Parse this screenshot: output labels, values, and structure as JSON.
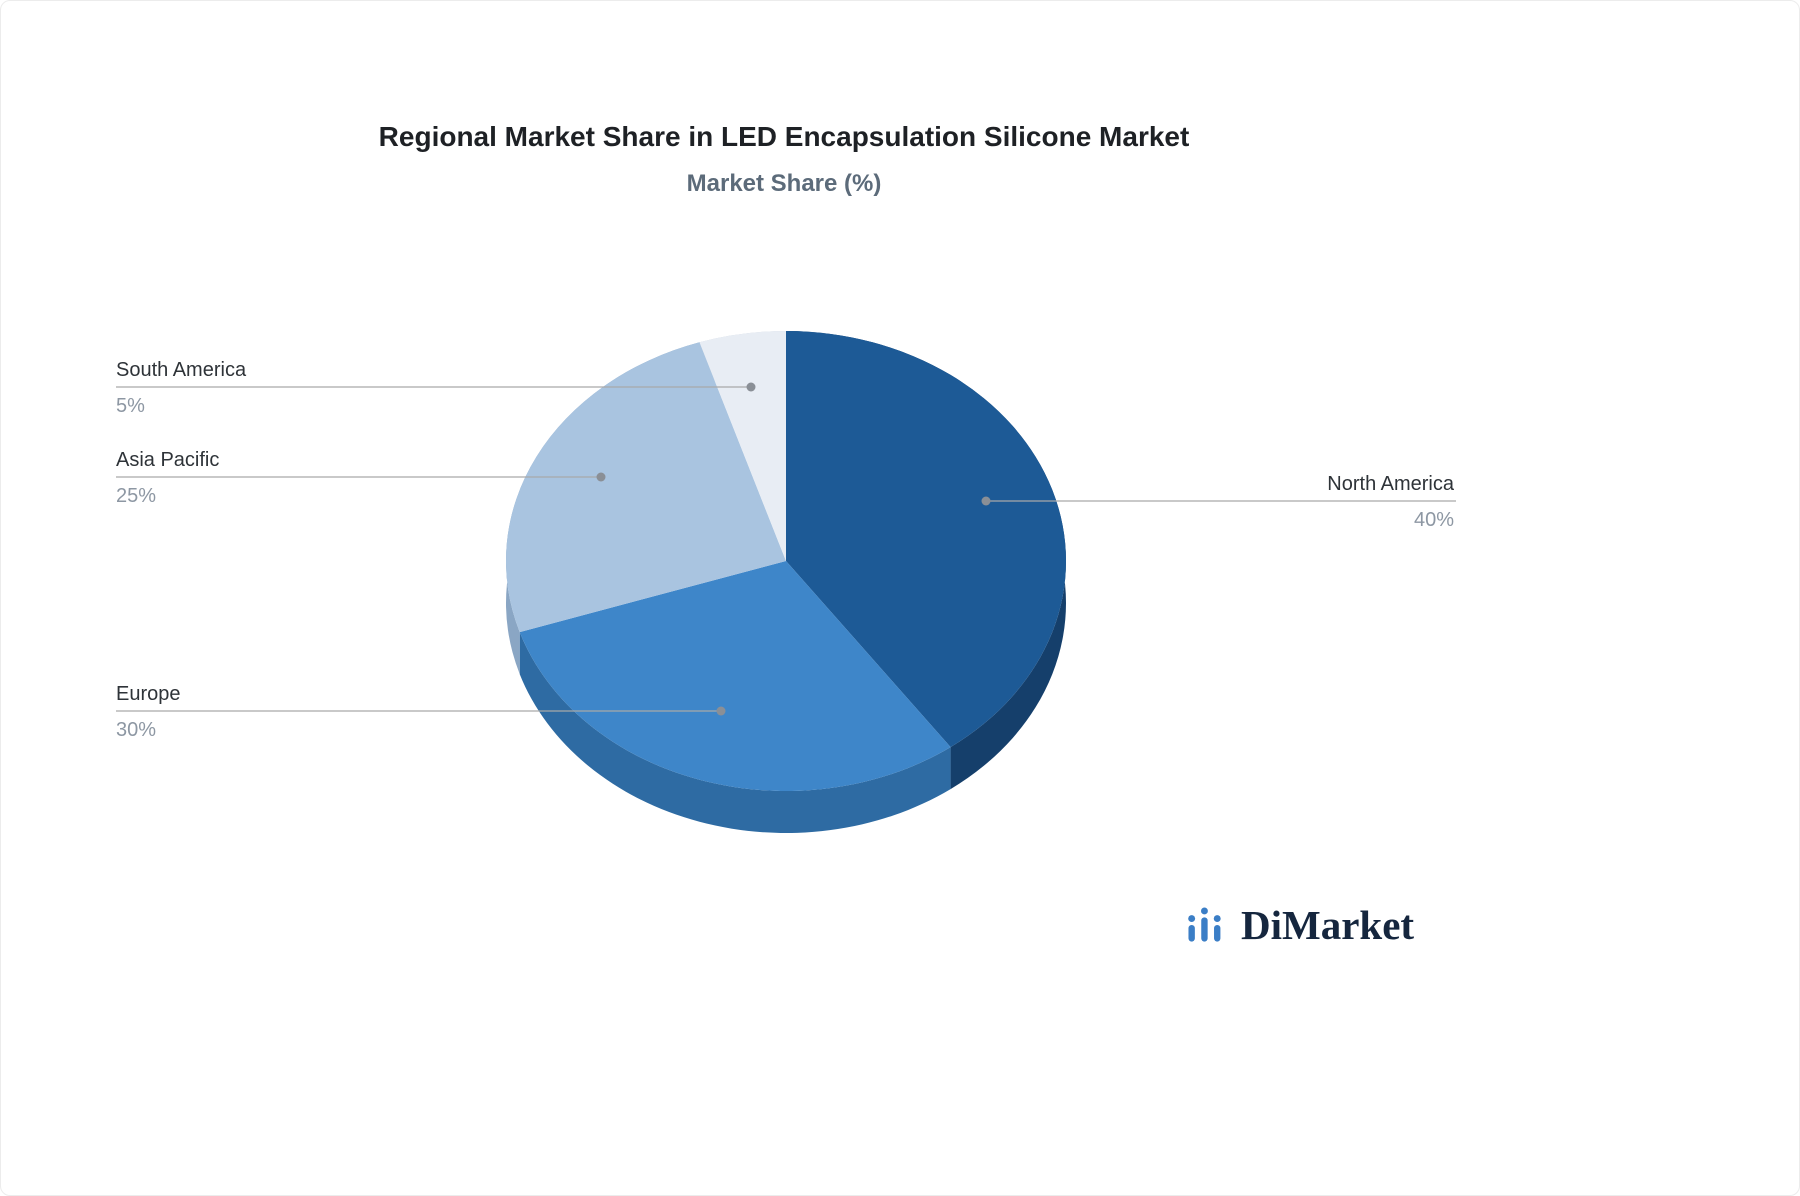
{
  "title": "Regional Market Share in LED Encapsulation Silicone Market",
  "subtitle": "Market Share (%)",
  "brand": {
    "name": "DiMarket",
    "icon": "bar-chart-logo-icon",
    "text_color": "#15263e",
    "icon_color": "#3b7ec6"
  },
  "chart_data": {
    "type": "pie",
    "title": "Regional Market Share in LED Encapsulation Silicone Market",
    "subtitle": "Market Share (%)",
    "unit": "%",
    "effect": "3d",
    "start_angle_deg": 0,
    "direction": "clockwise",
    "legend_position": "callout-labels",
    "labels": [
      "North America",
      "Europe",
      "Asia Pacific",
      "South America"
    ],
    "values": [
      40,
      30,
      25,
      5
    ],
    "display_labels": [
      "40%",
      "30%",
      "25%",
      "5%"
    ],
    "colors": [
      "#1d5a96",
      "#3e86c9",
      "#a9c4e0",
      "#e8edf4"
    ],
    "side_colors": [
      "#153f6b",
      "#2e6ba3",
      "#8aa6c4",
      "#c6cfdb"
    ],
    "leader_line_color": "#a9a9a9",
    "leader_dot_color": "#8a8f96"
  }
}
